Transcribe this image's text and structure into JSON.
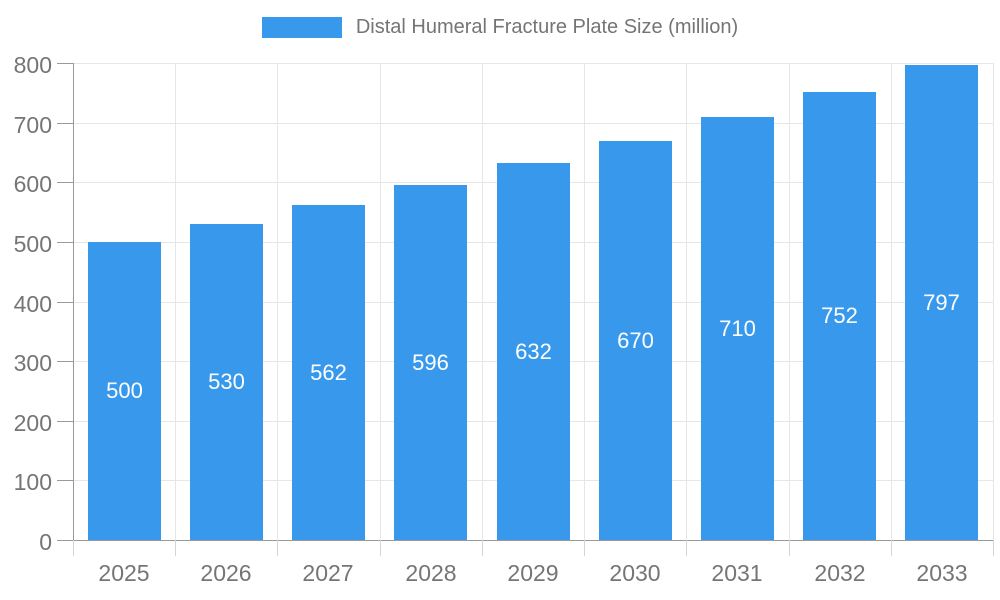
{
  "chart_data": {
    "type": "bar",
    "title": "Distal Humeral Fracture Plate Size (million)",
    "legend_position": "top",
    "categories": [
      "2025",
      "2026",
      "2027",
      "2028",
      "2029",
      "2030",
      "2031",
      "2032",
      "2033"
    ],
    "values": [
      500,
      530,
      562,
      596,
      632,
      670,
      710,
      752,
      797
    ],
    "series": [
      {
        "name": "Distal Humeral Fracture Plate Size (million)",
        "values": [
          500,
          530,
          562,
          596,
          632,
          670,
          710,
          752,
          797
        ]
      }
    ],
    "xlabel": "",
    "ylabel": "",
    "ylim": [
      0,
      800
    ],
    "ytick_interval": 100,
    "ytick_labels": [
      "0",
      "100",
      "200",
      "300",
      "400",
      "500",
      "600",
      "700",
      "800"
    ],
    "grid": true,
    "value_labels_shown": true,
    "colors": {
      "bar": "#3899ec",
      "value_label": "#ffffff",
      "axis_text": "#757575",
      "legend_text": "#757575",
      "gridline": "#e6e6e6",
      "axis_line": "#9a9a9a"
    }
  }
}
